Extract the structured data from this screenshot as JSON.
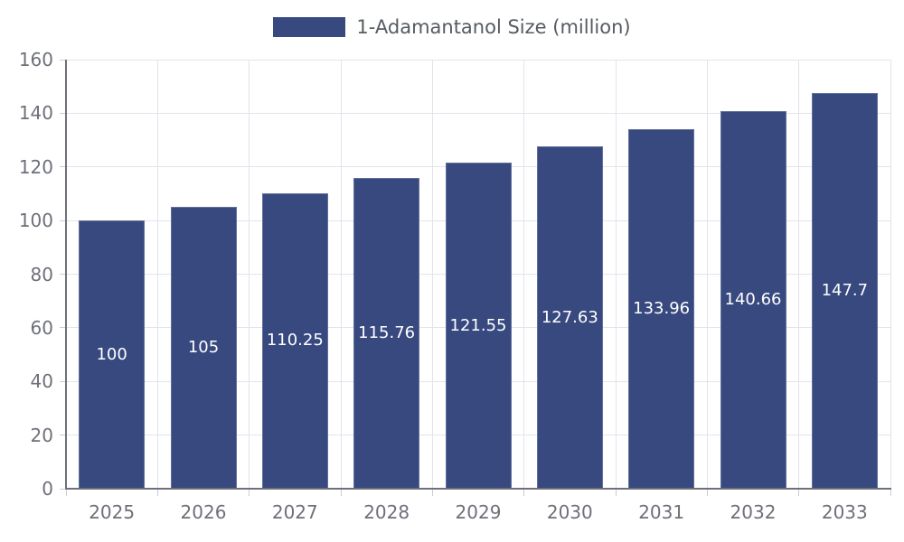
{
  "chart_data": {
    "type": "bar",
    "title": "",
    "legend": {
      "label": "1-Adamantanol Size (million)",
      "position": "top-center"
    },
    "categories": [
      "2025",
      "2026",
      "2027",
      "2028",
      "2029",
      "2030",
      "2031",
      "2032",
      "2033"
    ],
    "values": [
      100,
      105,
      110.25,
      115.76,
      121.55,
      127.63,
      133.96,
      140.66,
      147.7
    ],
    "value_labels": [
      "100",
      "105",
      "110.25",
      "115.76",
      "121.55",
      "127.63",
      "133.96",
      "140.66",
      "147.7"
    ],
    "xlabel": "",
    "ylabel": "",
    "ylim": [
      0,
      160
    ],
    "yticks": [
      0,
      20,
      40,
      60,
      80,
      100,
      120,
      140,
      160
    ],
    "grid": true,
    "colors": {
      "bar": "#37497f",
      "axis": "#6e7079",
      "grid_line": "#e2e4ec",
      "tick_label": "#6e7079",
      "bar_value_label": "#ffffff",
      "legend_text": "#565b61"
    }
  }
}
